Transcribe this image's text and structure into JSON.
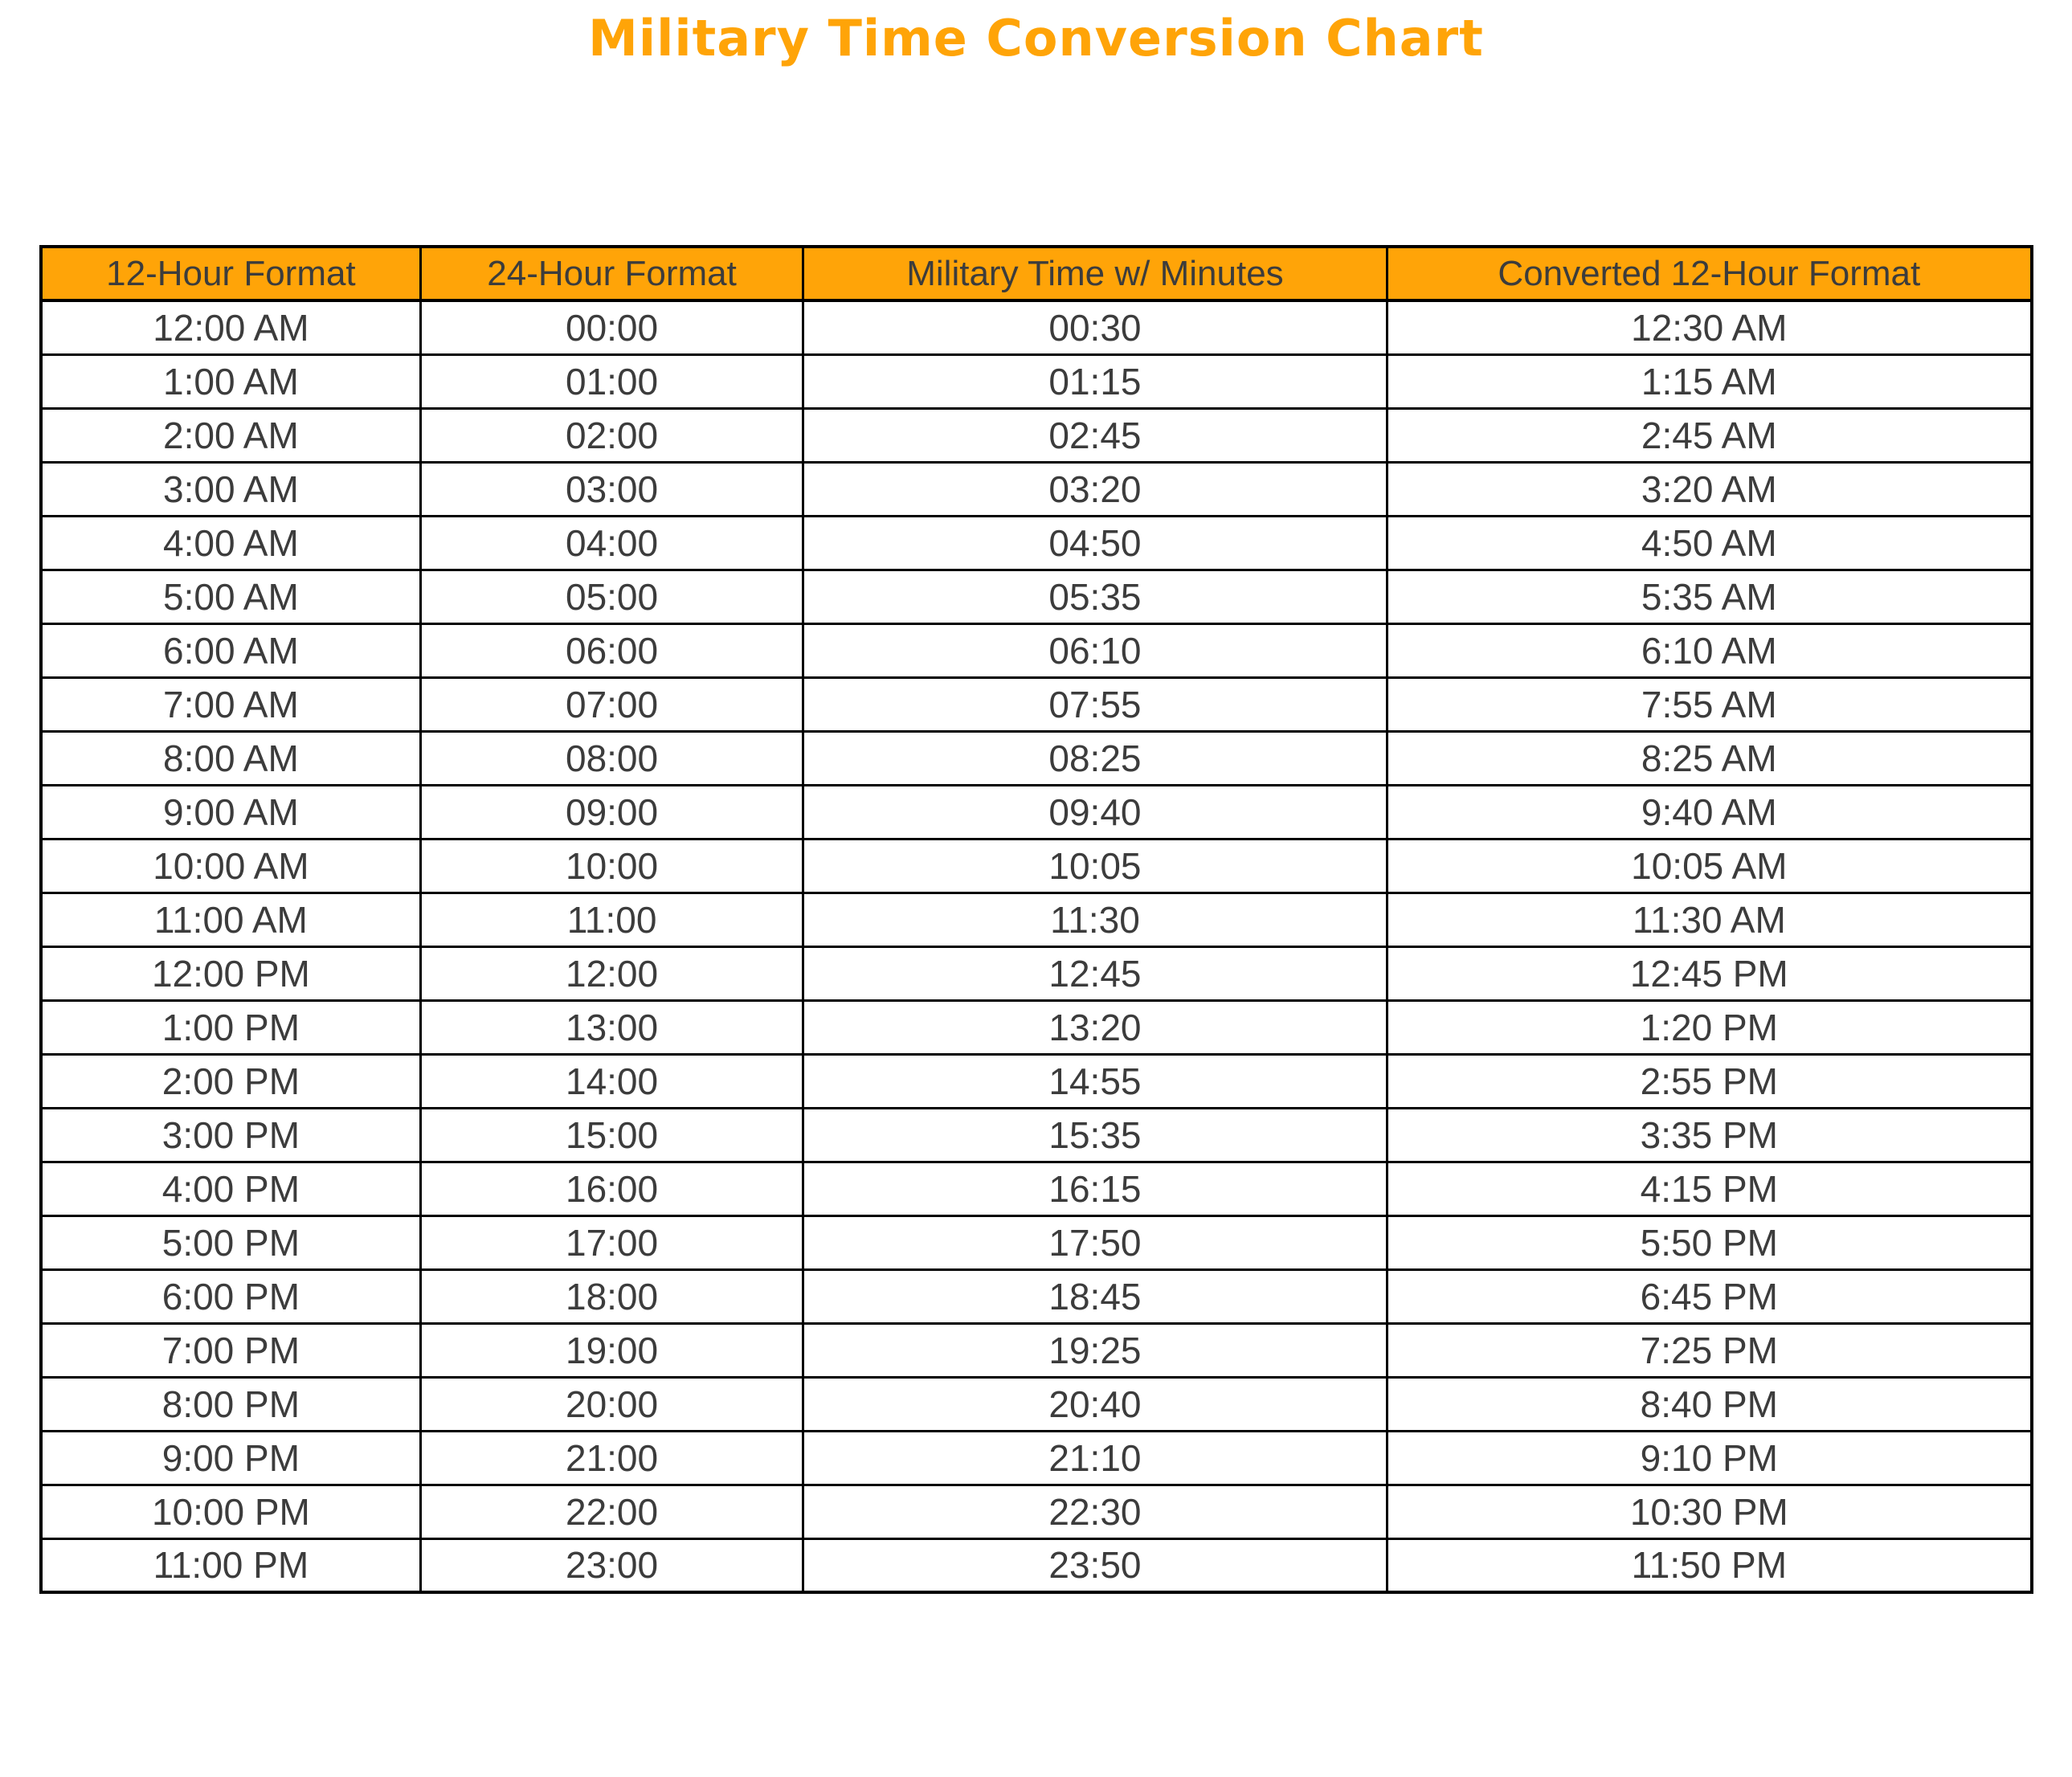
{
  "page": {
    "title": "Military Time Conversion Chart"
  },
  "colors": {
    "title_orange": "#FFA408",
    "header_bg": "#FFA408",
    "cell_text": "#3C3C3C",
    "border": "#000000",
    "background": "#FFFFFF"
  },
  "chart_data": {
    "type": "table",
    "title": "Military Time Conversion Chart",
    "columns": [
      "12-Hour Format",
      "24-Hour Format",
      "Military Time w/ Minutes",
      "Converted 12-Hour Format"
    ],
    "rows": [
      [
        "12:00 AM",
        "00:00",
        "00:30",
        "12:30 AM"
      ],
      [
        "1:00 AM",
        "01:00",
        "01:15",
        "1:15 AM"
      ],
      [
        "2:00 AM",
        "02:00",
        "02:45",
        "2:45 AM"
      ],
      [
        "3:00 AM",
        "03:00",
        "03:20",
        "3:20 AM"
      ],
      [
        "4:00 AM",
        "04:00",
        "04:50",
        "4:50 AM"
      ],
      [
        "5:00 AM",
        "05:00",
        "05:35",
        "5:35 AM"
      ],
      [
        "6:00 AM",
        "06:00",
        "06:10",
        "6:10 AM"
      ],
      [
        "7:00 AM",
        "07:00",
        "07:55",
        "7:55 AM"
      ],
      [
        "8:00 AM",
        "08:00",
        "08:25",
        "8:25 AM"
      ],
      [
        "9:00 AM",
        "09:00",
        "09:40",
        "9:40 AM"
      ],
      [
        "10:00 AM",
        "10:00",
        "10:05",
        "10:05 AM"
      ],
      [
        "11:00 AM",
        "11:00",
        "11:30",
        "11:30 AM"
      ],
      [
        "12:00 PM",
        "12:00",
        "12:45",
        "12:45 PM"
      ],
      [
        "1:00 PM",
        "13:00",
        "13:20",
        "1:20 PM"
      ],
      [
        "2:00 PM",
        "14:00",
        "14:55",
        "2:55 PM"
      ],
      [
        "3:00 PM",
        "15:00",
        "15:35",
        "3:35 PM"
      ],
      [
        "4:00 PM",
        "16:00",
        "16:15",
        "4:15 PM"
      ],
      [
        "5:00 PM",
        "17:00",
        "17:50",
        "5:50 PM"
      ],
      [
        "6:00 PM",
        "18:00",
        "18:45",
        "6:45 PM"
      ],
      [
        "7:00 PM",
        "19:00",
        "19:25",
        "7:25 PM"
      ],
      [
        "8:00 PM",
        "20:00",
        "20:40",
        "8:40 PM"
      ],
      [
        "9:00 PM",
        "21:00",
        "21:10",
        "9:10 PM"
      ],
      [
        "10:00 PM",
        "22:00",
        "22:30",
        "10:30 PM"
      ],
      [
        "11:00 PM",
        "23:00",
        "23:50",
        "11:50 PM"
      ]
    ]
  }
}
